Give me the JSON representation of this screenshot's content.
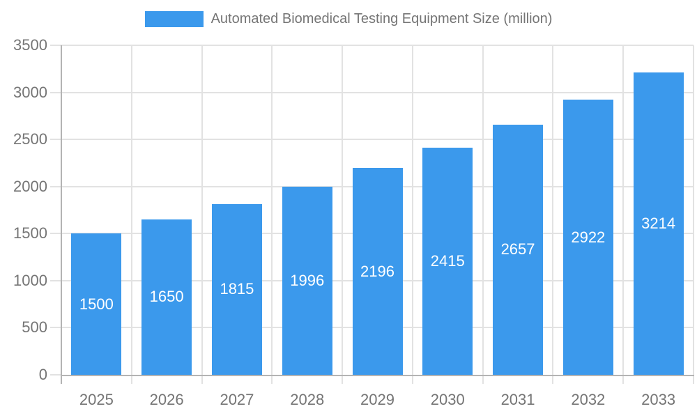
{
  "chart_data": {
    "type": "bar",
    "title": "Automated Biomedical Testing Equipment Size (million)",
    "categories": [
      "2025",
      "2026",
      "2027",
      "2028",
      "2029",
      "2030",
      "2031",
      "2032",
      "2033"
    ],
    "values": [
      1500,
      1650,
      1815,
      1996,
      2196,
      2415,
      2657,
      2922,
      3214
    ],
    "series_name": "Automated Biomedical Testing Equipment Size (million)",
    "xlabel": "",
    "ylabel": "",
    "ylim": [
      0,
      3500
    ],
    "ytick_step": 500,
    "yticks": [
      0,
      500,
      1000,
      1500,
      2000,
      2500,
      3000,
      3500
    ],
    "grid": true,
    "legend_position": "top-center",
    "bar_labels_shown": true,
    "colors": {
      "bar": "#3B99EC",
      "bar_label": "#FFFFFF",
      "grid": "#E2E2E2",
      "axis": "#B3B3B3",
      "tick_text": "#757575",
      "legend_text": "#757575",
      "background": "#FFFFFF"
    }
  }
}
